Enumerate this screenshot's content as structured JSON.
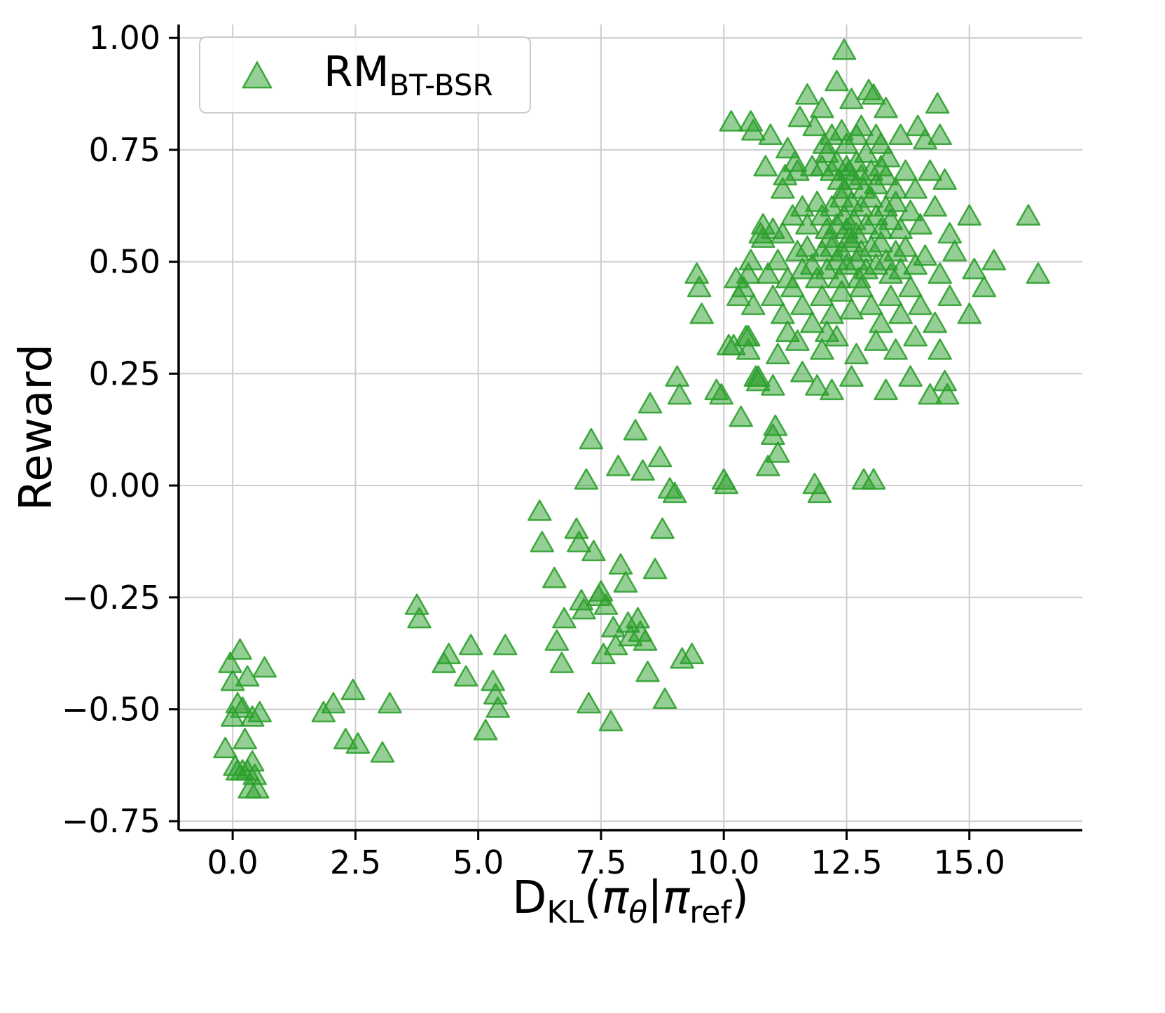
{
  "ylabel_text": "Reward",
  "xlabel_parts": {
    "d": "D",
    "kl": "KL",
    "open": "(",
    "pi1": "π",
    "theta": "θ",
    "bar": "|",
    "pi2": "π",
    "ref": "ref",
    "close": ")"
  },
  "legend": {
    "label_main": "RM",
    "label_sub": "BT-BSR"
  },
  "colors": {
    "marker": "#2ca02c",
    "marker_fill_opacity": 0.5,
    "marker_edge_opacity": 0.9,
    "grid": "#cccccc",
    "spine": "#000000",
    "tick_label": "#000000"
  },
  "chart_data": {
    "type": "scatter",
    "title": "",
    "xlabel": "D_KL(pi_theta | pi_ref)",
    "ylabel": "Reward",
    "grid": true,
    "legend_position": "upper left",
    "xlim": [
      -1.1,
      17.3
    ],
    "ylim": [
      -0.77,
      1.03
    ],
    "xticks": {
      "values": [
        0,
        2.5,
        5,
        7.5,
        10,
        12.5,
        15
      ],
      "labels": [
        "0.0",
        "2.5",
        "5.0",
        "7.5",
        "10.0",
        "12.5",
        "15.0"
      ]
    },
    "yticks": {
      "values": [
        -0.75,
        -0.5,
        -0.25,
        0,
        0.25,
        0.5,
        0.75,
        1.0
      ],
      "labels": [
        "−0.75",
        "−0.50",
        "−0.25",
        "0.00",
        "0.25",
        "0.50",
        "0.75",
        "1.00"
      ]
    },
    "series": [
      {
        "name": "RM_BT-BSR",
        "marker": "triangle-up",
        "color": "#2ca02c",
        "points": [
          [
            -0.15,
            -0.59
          ],
          [
            -0.05,
            -0.4
          ],
          [
            0.0,
            -0.44
          ],
          [
            0.0,
            -0.52
          ],
          [
            0.05,
            -0.63
          ],
          [
            0.1,
            -0.49
          ],
          [
            0.1,
            -0.64
          ],
          [
            0.15,
            -0.37
          ],
          [
            0.2,
            -0.5
          ],
          [
            0.2,
            -0.64
          ],
          [
            0.25,
            -0.57
          ],
          [
            0.3,
            -0.64
          ],
          [
            0.3,
            -0.43
          ],
          [
            0.35,
            -0.68
          ],
          [
            0.4,
            -0.52
          ],
          [
            0.4,
            -0.62
          ],
          [
            0.45,
            -0.65
          ],
          [
            0.5,
            -0.68
          ],
          [
            0.55,
            -0.51
          ],
          [
            0.65,
            -0.41
          ],
          [
            1.85,
            -0.51
          ],
          [
            2.05,
            -0.49
          ],
          [
            2.3,
            -0.57
          ],
          [
            2.45,
            -0.46
          ],
          [
            2.55,
            -0.58
          ],
          [
            3.05,
            -0.6
          ],
          [
            3.2,
            -0.49
          ],
          [
            3.75,
            -0.27
          ],
          [
            3.8,
            -0.3
          ],
          [
            4.3,
            -0.4
          ],
          [
            4.4,
            -0.38
          ],
          [
            4.75,
            -0.43
          ],
          [
            4.85,
            -0.36
          ],
          [
            5.15,
            -0.55
          ],
          [
            5.3,
            -0.44
          ],
          [
            5.35,
            -0.47
          ],
          [
            5.4,
            -0.5
          ],
          [
            5.55,
            -0.36
          ],
          [
            6.25,
            -0.06
          ],
          [
            6.3,
            -0.13
          ],
          [
            6.55,
            -0.21
          ],
          [
            6.6,
            -0.35
          ],
          [
            6.7,
            -0.4
          ],
          [
            6.75,
            -0.3
          ],
          [
            7.0,
            -0.1
          ],
          [
            7.05,
            -0.13
          ],
          [
            7.1,
            -0.26
          ],
          [
            7.15,
            -0.28
          ],
          [
            7.2,
            0.01
          ],
          [
            7.25,
            -0.49
          ],
          [
            7.3,
            0.1
          ],
          [
            7.35,
            -0.15
          ],
          [
            7.45,
            -0.25
          ],
          [
            7.5,
            -0.24
          ],
          [
            7.55,
            -0.38
          ],
          [
            7.6,
            -0.27
          ],
          [
            7.7,
            -0.53
          ],
          [
            7.75,
            -0.32
          ],
          [
            7.8,
            -0.36
          ],
          [
            7.85,
            0.04
          ],
          [
            7.9,
            -0.18
          ],
          [
            8.0,
            -0.22
          ],
          [
            8.05,
            -0.31
          ],
          [
            8.1,
            -0.34
          ],
          [
            8.2,
            0.12
          ],
          [
            8.25,
            -0.3
          ],
          [
            8.3,
            -0.33
          ],
          [
            8.35,
            0.03
          ],
          [
            8.4,
            -0.35
          ],
          [
            8.45,
            -0.42
          ],
          [
            8.5,
            0.18
          ],
          [
            8.6,
            -0.19
          ],
          [
            8.7,
            0.06
          ],
          [
            8.75,
            -0.1
          ],
          [
            8.8,
            -0.48
          ],
          [
            8.9,
            -0.01
          ],
          [
            9.0,
            -0.02
          ],
          [
            9.05,
            0.24
          ],
          [
            9.1,
            0.2
          ],
          [
            9.15,
            -0.39
          ],
          [
            9.35,
            -0.38
          ],
          [
            9.45,
            0.47
          ],
          [
            9.5,
            0.44
          ],
          [
            9.55,
            0.38
          ],
          [
            9.85,
            0.21
          ],
          [
            9.95,
            0.2
          ],
          [
            10.0,
            0.01
          ],
          [
            10.05,
            0.0
          ],
          [
            10.1,
            0.31
          ],
          [
            10.15,
            0.81
          ],
          [
            10.25,
            0.46
          ],
          [
            10.3,
            0.42
          ],
          [
            10.35,
            0.15
          ],
          [
            10.45,
            0.33
          ],
          [
            10.5,
            0.3
          ],
          [
            10.55,
            0.81
          ],
          [
            10.6,
            0.79
          ],
          [
            10.65,
            0.24
          ],
          [
            10.7,
            0.23
          ],
          [
            10.75,
            0.56
          ],
          [
            10.8,
            0.55
          ],
          [
            10.85,
            0.71
          ],
          [
            10.9,
            0.04
          ],
          [
            10.95,
            0.78
          ],
          [
            11.0,
            0.11
          ],
          [
            11.05,
            0.13
          ],
          [
            11.1,
            0.07
          ],
          [
            12.45,
            0.97
          ],
          [
            12.3,
            0.9
          ],
          [
            12.95,
            0.88
          ],
          [
            13.05,
            0.87
          ],
          [
            11.7,
            0.87
          ],
          [
            13.3,
            0.84
          ],
          [
            14.35,
            0.85
          ],
          [
            14.4,
            0.78
          ],
          [
            12.0,
            0.84
          ],
          [
            12.6,
            0.86
          ],
          [
            11.55,
            0.82
          ],
          [
            11.85,
            0.8
          ],
          [
            12.2,
            0.78
          ],
          [
            12.4,
            0.79
          ],
          [
            12.5,
            0.76
          ],
          [
            12.7,
            0.78
          ],
          [
            12.8,
            0.8
          ],
          [
            13.1,
            0.78
          ],
          [
            13.2,
            0.76
          ],
          [
            13.95,
            0.8
          ],
          [
            14.1,
            0.77
          ],
          [
            11.3,
            0.75
          ],
          [
            12.05,
            0.76
          ],
          [
            13.6,
            0.78
          ],
          [
            11.45,
            0.72
          ],
          [
            12.1,
            0.74
          ],
          [
            12.9,
            0.74
          ],
          [
            13.35,
            0.73
          ],
          [
            11.5,
            0.7
          ],
          [
            11.8,
            0.71
          ],
          [
            12.0,
            0.71
          ],
          [
            12.2,
            0.7
          ],
          [
            12.3,
            0.72
          ],
          [
            12.35,
            0.68
          ],
          [
            12.5,
            0.71
          ],
          [
            12.55,
            0.7
          ],
          [
            12.6,
            0.68
          ],
          [
            12.7,
            0.72
          ],
          [
            12.8,
            0.69
          ],
          [
            13.0,
            0.7
          ],
          [
            13.1,
            0.67
          ],
          [
            13.2,
            0.71
          ],
          [
            13.3,
            0.69
          ],
          [
            13.5,
            0.66
          ],
          [
            13.7,
            0.7
          ],
          [
            13.9,
            0.66
          ],
          [
            14.2,
            0.7
          ],
          [
            14.5,
            0.68
          ],
          [
            11.2,
            0.66
          ],
          [
            11.25,
            0.69
          ],
          [
            12.45,
            0.66
          ],
          [
            12.85,
            0.66
          ],
          [
            11.0,
            0.57
          ],
          [
            11.2,
            0.56
          ],
          [
            11.4,
            0.6
          ],
          [
            11.6,
            0.62
          ],
          [
            11.7,
            0.58
          ],
          [
            11.9,
            0.63
          ],
          [
            12.0,
            0.6
          ],
          [
            12.1,
            0.57
          ],
          [
            12.2,
            0.62
          ],
          [
            12.3,
            0.58
          ],
          [
            12.4,
            0.64
          ],
          [
            12.45,
            0.6
          ],
          [
            12.5,
            0.57
          ],
          [
            12.6,
            0.63
          ],
          [
            12.65,
            0.59
          ],
          [
            12.7,
            0.56
          ],
          [
            12.8,
            0.62
          ],
          [
            12.9,
            0.58
          ],
          [
            13.0,
            0.64
          ],
          [
            13.1,
            0.6
          ],
          [
            13.2,
            0.57
          ],
          [
            13.3,
            0.62
          ],
          [
            13.4,
            0.59
          ],
          [
            13.5,
            0.63
          ],
          [
            13.6,
            0.57
          ],
          [
            13.8,
            0.61
          ],
          [
            14.0,
            0.58
          ],
          [
            14.3,
            0.62
          ],
          [
            14.6,
            0.56
          ],
          [
            15.0,
            0.6
          ],
          [
            16.2,
            0.6
          ],
          [
            10.8,
            0.58
          ],
          [
            12.15,
            0.55
          ],
          [
            12.55,
            0.55
          ],
          [
            10.9,
            0.47
          ],
          [
            11.1,
            0.5
          ],
          [
            11.3,
            0.46
          ],
          [
            11.5,
            0.52
          ],
          [
            11.6,
            0.48
          ],
          [
            11.7,
            0.53
          ],
          [
            11.8,
            0.49
          ],
          [
            11.9,
            0.46
          ],
          [
            12.0,
            0.52
          ],
          [
            12.1,
            0.48
          ],
          [
            12.2,
            0.53
          ],
          [
            12.3,
            0.5
          ],
          [
            12.35,
            0.46
          ],
          [
            12.4,
            0.52
          ],
          [
            12.5,
            0.49
          ],
          [
            12.6,
            0.54
          ],
          [
            12.7,
            0.5
          ],
          [
            12.75,
            0.46
          ],
          [
            12.8,
            0.52
          ],
          [
            12.9,
            0.48
          ],
          [
            13.0,
            0.53
          ],
          [
            13.1,
            0.49
          ],
          [
            13.2,
            0.54
          ],
          [
            13.3,
            0.5
          ],
          [
            13.4,
            0.47
          ],
          [
            13.5,
            0.52
          ],
          [
            13.6,
            0.48
          ],
          [
            13.7,
            0.53
          ],
          [
            13.9,
            0.49
          ],
          [
            14.1,
            0.51
          ],
          [
            14.4,
            0.47
          ],
          [
            14.7,
            0.52
          ],
          [
            15.1,
            0.48
          ],
          [
            15.5,
            0.5
          ],
          [
            16.4,
            0.47
          ],
          [
            10.5,
            0.47
          ],
          [
            10.55,
            0.5
          ],
          [
            10.4,
            0.44
          ],
          [
            10.6,
            0.4
          ],
          [
            11.0,
            0.42
          ],
          [
            11.2,
            0.38
          ],
          [
            11.4,
            0.44
          ],
          [
            11.6,
            0.4
          ],
          [
            11.8,
            0.36
          ],
          [
            12.0,
            0.42
          ],
          [
            12.2,
            0.38
          ],
          [
            12.4,
            0.43
          ],
          [
            12.6,
            0.39
          ],
          [
            12.8,
            0.44
          ],
          [
            13.0,
            0.4
          ],
          [
            13.2,
            0.36
          ],
          [
            13.4,
            0.42
          ],
          [
            13.6,
            0.38
          ],
          [
            13.8,
            0.44
          ],
          [
            14.0,
            0.4
          ],
          [
            14.3,
            0.36
          ],
          [
            14.6,
            0.42
          ],
          [
            15.0,
            0.38
          ],
          [
            15.3,
            0.44
          ],
          [
            10.2,
            0.31
          ],
          [
            10.5,
            0.33
          ],
          [
            11.1,
            0.29
          ],
          [
            11.5,
            0.32
          ],
          [
            12.0,
            0.3
          ],
          [
            12.3,
            0.33
          ],
          [
            12.7,
            0.29
          ],
          [
            13.1,
            0.32
          ],
          [
            13.5,
            0.3
          ],
          [
            13.9,
            0.33
          ],
          [
            14.4,
            0.3
          ],
          [
            12.1,
            0.34
          ],
          [
            11.3,
            0.34
          ],
          [
            10.7,
            0.24
          ],
          [
            11.0,
            0.22
          ],
          [
            11.6,
            0.25
          ],
          [
            12.2,
            0.21
          ],
          [
            12.6,
            0.24
          ],
          [
            13.3,
            0.21
          ],
          [
            13.8,
            0.24
          ],
          [
            14.2,
            0.2
          ],
          [
            14.5,
            0.23
          ],
          [
            14.55,
            0.2
          ],
          [
            11.9,
            0.22
          ],
          [
            11.85,
            0.0
          ],
          [
            11.95,
            -0.02
          ],
          [
            12.85,
            0.01
          ],
          [
            13.05,
            0.01
          ]
        ]
      }
    ]
  }
}
